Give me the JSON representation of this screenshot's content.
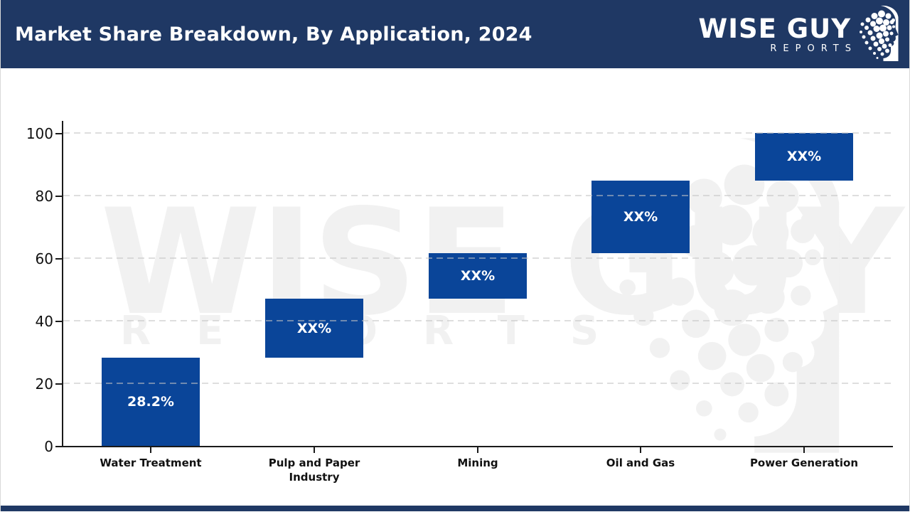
{
  "header": {
    "title": "Market Share Breakdown, By Application, 2024",
    "bg_color": "#1f3864",
    "logo": {
      "line1": "WISE GUY",
      "line2": "REPORTS",
      "icon": "dotted-head-profile"
    }
  },
  "watermark": {
    "line1": "WISE GUY",
    "line2": "REPORTS",
    "icon": "dotted-head-profile",
    "color": "#f1f1f1"
  },
  "chart_data": {
    "type": "bar",
    "subtype": "waterfall",
    "title": "Market Share Breakdown, By Application, 2024",
    "xlabel": "",
    "ylabel": "",
    "categories": [
      "Water Treatment",
      "Pulp and Paper Industry",
      "Mining",
      "Oil and Gas",
      "Power Generation"
    ],
    "segments": [
      {
        "category": "Water Treatment",
        "start": 0,
        "end": 28.2,
        "label": "28.2%"
      },
      {
        "category": "Pulp and Paper Industry",
        "start": 28.2,
        "end": 47.0,
        "label": "XX%"
      },
      {
        "category": "Mining",
        "start": 47.0,
        "end": 61.5,
        "label": "XX%"
      },
      {
        "category": "Oil and Gas",
        "start": 61.5,
        "end": 84.8,
        "label": "XX%"
      },
      {
        "category": "Power Generation",
        "start": 84.8,
        "end": 100,
        "label": "XX%"
      }
    ],
    "yticks": [
      0,
      20,
      40,
      60,
      80,
      100
    ],
    "ylim": [
      0,
      104
    ],
    "grid": "horizontal-dashed",
    "legend": "none",
    "bar_color": "#0a4599",
    "bar_label_color": "#ffffff",
    "axis_color": "#1a1a1a",
    "gridline_color": "#e0e0e0"
  }
}
